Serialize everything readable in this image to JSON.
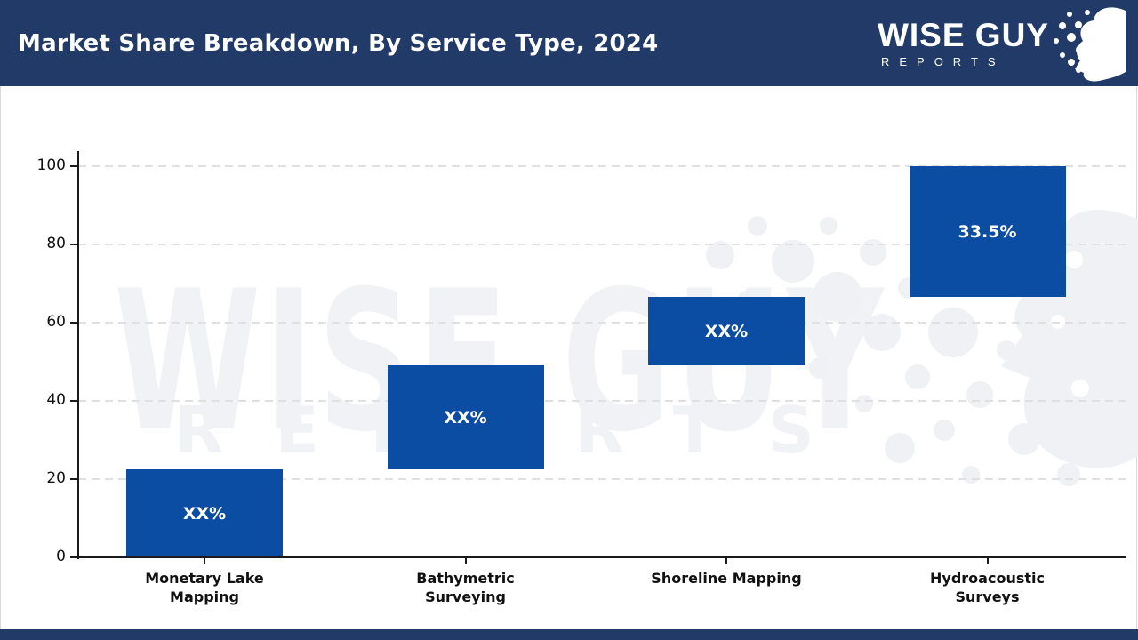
{
  "header": {
    "title": "Market Share Breakdown, By Service Type, 2024",
    "logo": {
      "wordmark": "WISE GUY",
      "subtitle": "REPORTS"
    },
    "bg_color": "#223A68"
  },
  "watermark": {
    "line1": "WISE GUY",
    "line2": "REPORTS"
  },
  "chart_data": {
    "type": "bar",
    "variant": "floating-waterfall",
    "title": "Market Share Breakdown, By Service Type, 2024",
    "categories": [
      "Monetary Lake Mapping",
      "Bathymetric Surveying",
      "Shoreline Mapping",
      "Hydroacoustic Surveys"
    ],
    "category_label_lines": [
      [
        "Monetary Lake",
        "Mapping"
      ],
      [
        "Bathymetric",
        "Surveying"
      ],
      [
        "Shoreline Mapping"
      ],
      [
        "Hydroacoustic",
        "Surveys"
      ]
    ],
    "segments": [
      {
        "category": "Monetary Lake Mapping",
        "start": 0,
        "end": 22.5,
        "label": "XX%"
      },
      {
        "category": "Bathymetric Surveying",
        "start": 22.5,
        "end": 49,
        "label": "XX%"
      },
      {
        "category": "Shoreline Mapping",
        "start": 49,
        "end": 66.5,
        "label": "XX%"
      },
      {
        "category": "Hydroacoustic Surveys",
        "start": 66.5,
        "end": 100,
        "label": "33.5%"
      }
    ],
    "ylim": [
      0,
      100
    ],
    "yticks": [
      0,
      20,
      40,
      60,
      80,
      100
    ],
    "xlabel": "",
    "ylabel": "",
    "grid": "horizontal-dashed",
    "legend": "none",
    "bar_color": "#0C4DA4",
    "bar_label_color": "#FFFFFF",
    "axis_color": "#1A1A1A"
  }
}
